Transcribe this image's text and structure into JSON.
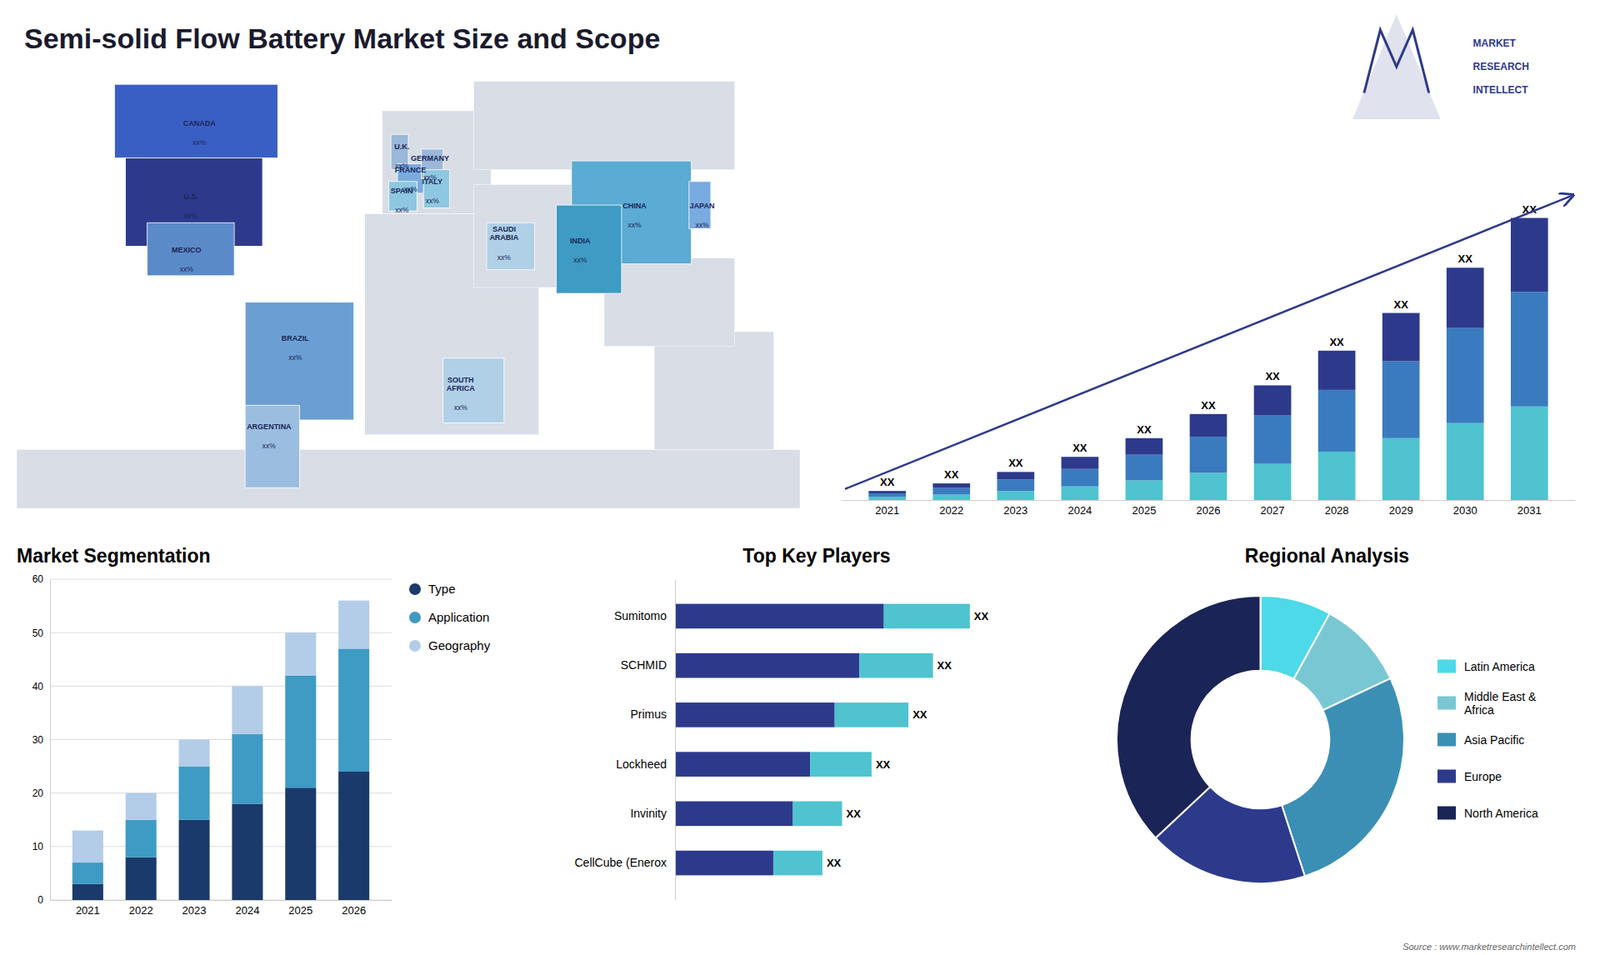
{
  "title": "Semi-solid Flow Battery Market Size and Scope",
  "annotations": [
    "Source : www.marketresearchintellect.com",
    "MARKET",
    "RESEARCH",
    "INTELLECT"
  ],
  "chart_data": [
    {
      "type": "map",
      "categories": [
        "CANADA",
        "U.S.",
        "MEXICO",
        "BRAZIL",
        "ARGENTINA",
        "U.K.",
        "FRANCE",
        "GERMANY",
        "SPAIN",
        "ITALY",
        "SAUDI\nARABIA",
        "SOUTH\nAFRICA",
        "CHINA",
        "INDIA",
        "JAPAN"
      ],
      "colors": [
        "#3a5fc4",
        "#2d3a8c",
        "#5b8ac8",
        "#6b9fd4",
        "#9bbde0",
        "#9ab8d8",
        "#7aabe0",
        "#9ab8d8",
        "#8ec8e0",
        "#8ec8e0",
        "#b0d0e8",
        "#b0d0e8",
        "#5babd4",
        "#3d9bc4",
        "#7aabe0"
      ],
      "annotations": [
        "xx%",
        "xx%",
        "xx%",
        "xx%",
        "xx%",
        "xx%",
        "xx%",
        "xx%",
        "xx%",
        "xx%",
        "xx%",
        "xx%",
        "xx%",
        "xx%",
        "xx%"
      ]
    },
    {
      "type": "bar",
      "stacked": true,
      "categories": [
        "2021",
        "2022",
        "2023",
        "2024",
        "2025",
        "2026",
        "2027",
        "2028",
        "2029",
        "2030",
        "2031"
      ],
      "series": [
        {
          "color": "#4fc3d0",
          "values": [
            1.0,
            1.8,
            3.0,
            4.5,
            6.5,
            9.0,
            12.0,
            16.0,
            20.5,
            25.5,
            31.0
          ]
        },
        {
          "color": "#3a7bbf",
          "values": [
            1.2,
            2.2,
            3.8,
            5.8,
            8.5,
            12.0,
            16.0,
            20.5,
            25.5,
            31.5,
            38.0
          ]
        },
        {
          "color": "#2d3a8c",
          "values": [
            0.8,
            1.5,
            2.5,
            4.0,
            5.5,
            7.5,
            10.0,
            13.0,
            16.0,
            20.0,
            24.5
          ]
        }
      ],
      "ylim": [
        0,
        121.55
      ],
      "tick_labels": "x",
      "annotations": [
        "XX",
        "XX",
        "XX",
        "XX",
        "XX",
        "XX",
        "XX",
        "XX",
        "XX",
        "XX",
        "XX"
      ]
    },
    {
      "type": "bar",
      "stacked": true,
      "title": "Market Segmentation",
      "categories": [
        "2021",
        "2022",
        "2023",
        "2024",
        "2025",
        "2026"
      ],
      "series": [
        {
          "name": "Type",
          "color": "#1a3a6b",
          "values": [
            3,
            8,
            15,
            18,
            21,
            24
          ]
        },
        {
          "name": "Application",
          "color": "#3d9bc4",
          "values": [
            4,
            7,
            10,
            13,
            21,
            23
          ]
        },
        {
          "name": "Geography",
          "color": "#b3cde8",
          "values": [
            6,
            5,
            5,
            9,
            8,
            9
          ]
        }
      ],
      "ylim": [
        0,
        60
      ],
      "yticks": [
        0,
        10,
        20,
        30,
        40,
        50,
        60
      ],
      "grid": true,
      "legend": "right"
    },
    {
      "type": "bar",
      "orientation": "horizontal",
      "stacked": true,
      "title": "Top Key Players",
      "categories": [
        "Sumitomo",
        "SCHMID",
        "Primus",
        "Lockheed",
        "Invinity",
        "CellCube (Enerox"
      ],
      "series": [
        {
          "color": "#2d3a8c",
          "values": [
            8.5,
            7.5,
            6.5,
            5.5,
            4.8,
            4.0
          ]
        },
        {
          "color": "#4fc3d0",
          "values": [
            3.5,
            3.0,
            3.0,
            2.5,
            2.0,
            2.0
          ]
        }
      ],
      "xlim": [
        0,
        15.6
      ],
      "tick_labels": "y",
      "annotations": [
        "XX",
        "XX",
        "XX",
        "XX",
        "XX",
        "XX"
      ]
    },
    {
      "type": "pie",
      "title": "Regional Analysis",
      "categories": [
        "Latin America",
        "Middle East &\nAfrica",
        "Asia Pacific",
        "Europe",
        "North America"
      ],
      "values": [
        8,
        10,
        27,
        18,
        37
      ],
      "colors": [
        "#4dd9e8",
        "#7ac7d4",
        "#3b8fb5",
        "#2d3a8c",
        "#1a2456"
      ],
      "legend": "right"
    }
  ]
}
